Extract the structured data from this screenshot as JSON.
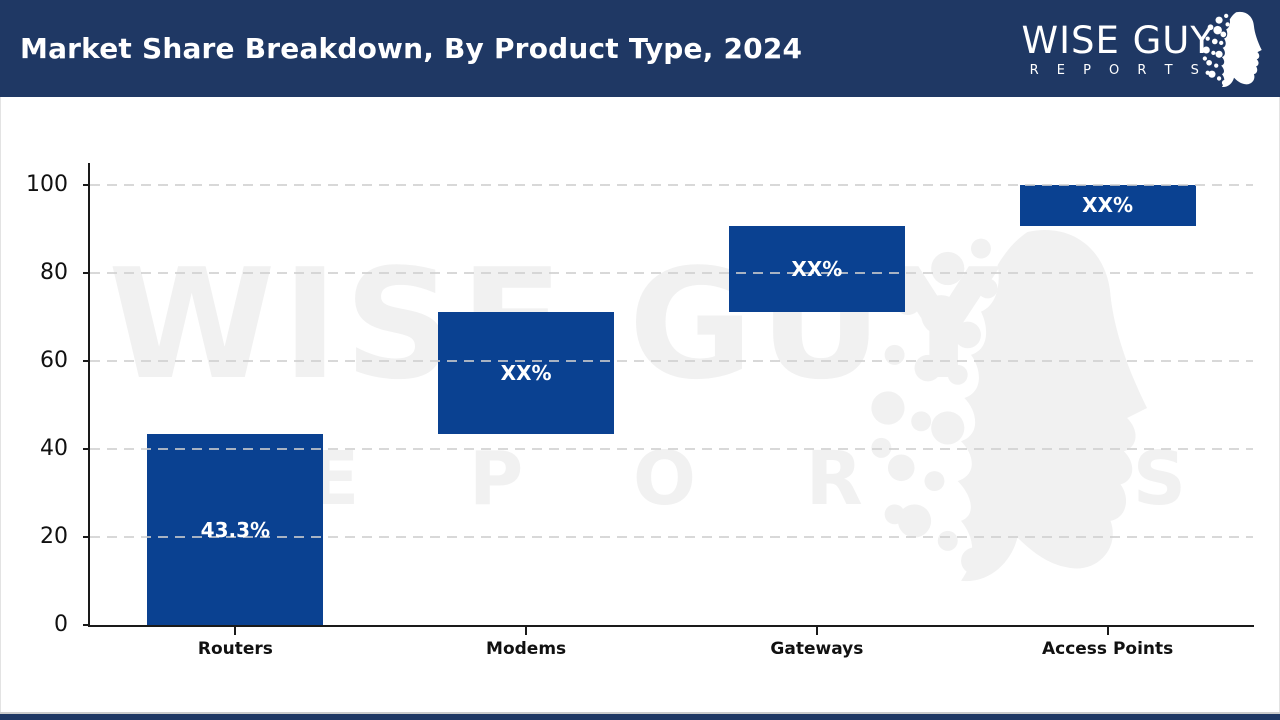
{
  "header": {
    "title": "Market Share Breakdown, By Product Type, 2024",
    "logo": {
      "line1": "WISE GUY",
      "line2": "R E P O R T S"
    }
  },
  "watermark": {
    "line1": "WISE GUY",
    "line2": "R E P O R T S"
  },
  "colors": {
    "header_bg": "#1f3864",
    "bar": "#0a4191",
    "bar_label": "#ffffff",
    "grid": "#cfcfcf",
    "axis": "#1a1a1a",
    "watermark": "#f1f1f1"
  },
  "chart_data": {
    "type": "bar",
    "subtype": "waterfall-floating-bars",
    "title": "Market Share Breakdown, By Product Type, 2024",
    "categories": [
      "Routers",
      "Modems",
      "Gateways",
      "Access Points"
    ],
    "bars": [
      {
        "category": "Routers",
        "start": 0,
        "end": 43.3,
        "label": "43.3%"
      },
      {
        "category": "Modems",
        "start": 43.3,
        "end": 71.1,
        "label": "XX%"
      },
      {
        "category": "Gateways",
        "start": 71.1,
        "end": 90.7,
        "label": "XX%"
      },
      {
        "category": "Access Points",
        "start": 90.7,
        "end": 100,
        "label": "XX%"
      }
    ],
    "xlabel": "",
    "ylabel": "",
    "y_ticks": [
      0,
      20,
      40,
      60,
      80,
      100
    ],
    "ylim": [
      0,
      105
    ],
    "grid": "horizontal-dashed",
    "legend": "none"
  }
}
